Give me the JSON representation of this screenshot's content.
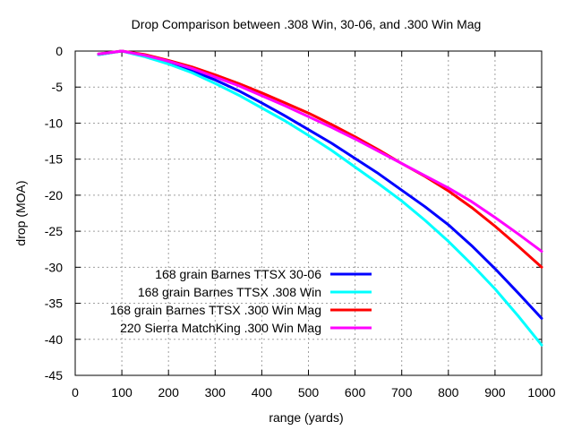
{
  "chart_data": {
    "type": "line",
    "title": "Drop Comparison between .308 Win, 30-06, and .300 Win Mag",
    "xlabel": "range (yards)",
    "ylabel": "drop (MOA)",
    "xlim": [
      0,
      1000
    ],
    "ylim": [
      -45,
      0
    ],
    "xticks": [
      0,
      100,
      200,
      300,
      400,
      500,
      600,
      700,
      800,
      900,
      1000
    ],
    "yticks": [
      0,
      -5,
      -10,
      -15,
      -20,
      -25,
      -30,
      -35,
      -40,
      -45
    ],
    "grid": true,
    "legend_position": "bottom-right",
    "x": [
      50,
      100,
      150,
      200,
      250,
      300,
      350,
      400,
      450,
      500,
      550,
      600,
      650,
      700,
      750,
      800,
      850,
      900,
      950,
      1000
    ],
    "series": [
      {
        "name": "168 grain Barnes TTSX 30-06",
        "color": "#0000ff",
        "values": [
          -0.5,
          0.0,
          -0.7,
          -1.6,
          -2.7,
          -4.0,
          -5.5,
          -7.2,
          -9.0,
          -10.9,
          -12.8,
          -14.9,
          -17.0,
          -19.3,
          -21.6,
          -24.1,
          -27.0,
          -30.2,
          -33.6,
          -37.1
        ]
      },
      {
        "name": "168 grain Barnes TTSX .308 Win",
        "color": "#00ffff",
        "values": [
          -0.5,
          0.0,
          -0.8,
          -1.8,
          -3.0,
          -4.5,
          -6.1,
          -7.9,
          -9.7,
          -11.7,
          -13.8,
          -16.1,
          -18.4,
          -20.8,
          -23.5,
          -26.4,
          -29.6,
          -33.0,
          -36.8,
          -40.8
        ]
      },
      {
        "name": "168 grain Barnes TTSX .300 Win Mag",
        "color": "#ff0000",
        "values": [
          -0.4,
          0.0,
          -0.5,
          -1.3,
          -2.2,
          -3.3,
          -4.5,
          -5.8,
          -7.2,
          -8.6,
          -10.2,
          -11.9,
          -13.7,
          -15.6,
          -17.4,
          -19.4,
          -21.7,
          -24.3,
          -27.1,
          -30.0
        ]
      },
      {
        "name": "220 Sierra MatchKing .300 Win Mag",
        "color": "#ff00ff",
        "values": [
          -0.4,
          0.0,
          -0.6,
          -1.4,
          -2.4,
          -3.6,
          -4.8,
          -6.2,
          -7.6,
          -9.1,
          -10.6,
          -12.2,
          -13.9,
          -15.6,
          -17.3,
          -19.0,
          -20.9,
          -23.1,
          -25.4,
          -27.8
        ]
      }
    ]
  }
}
